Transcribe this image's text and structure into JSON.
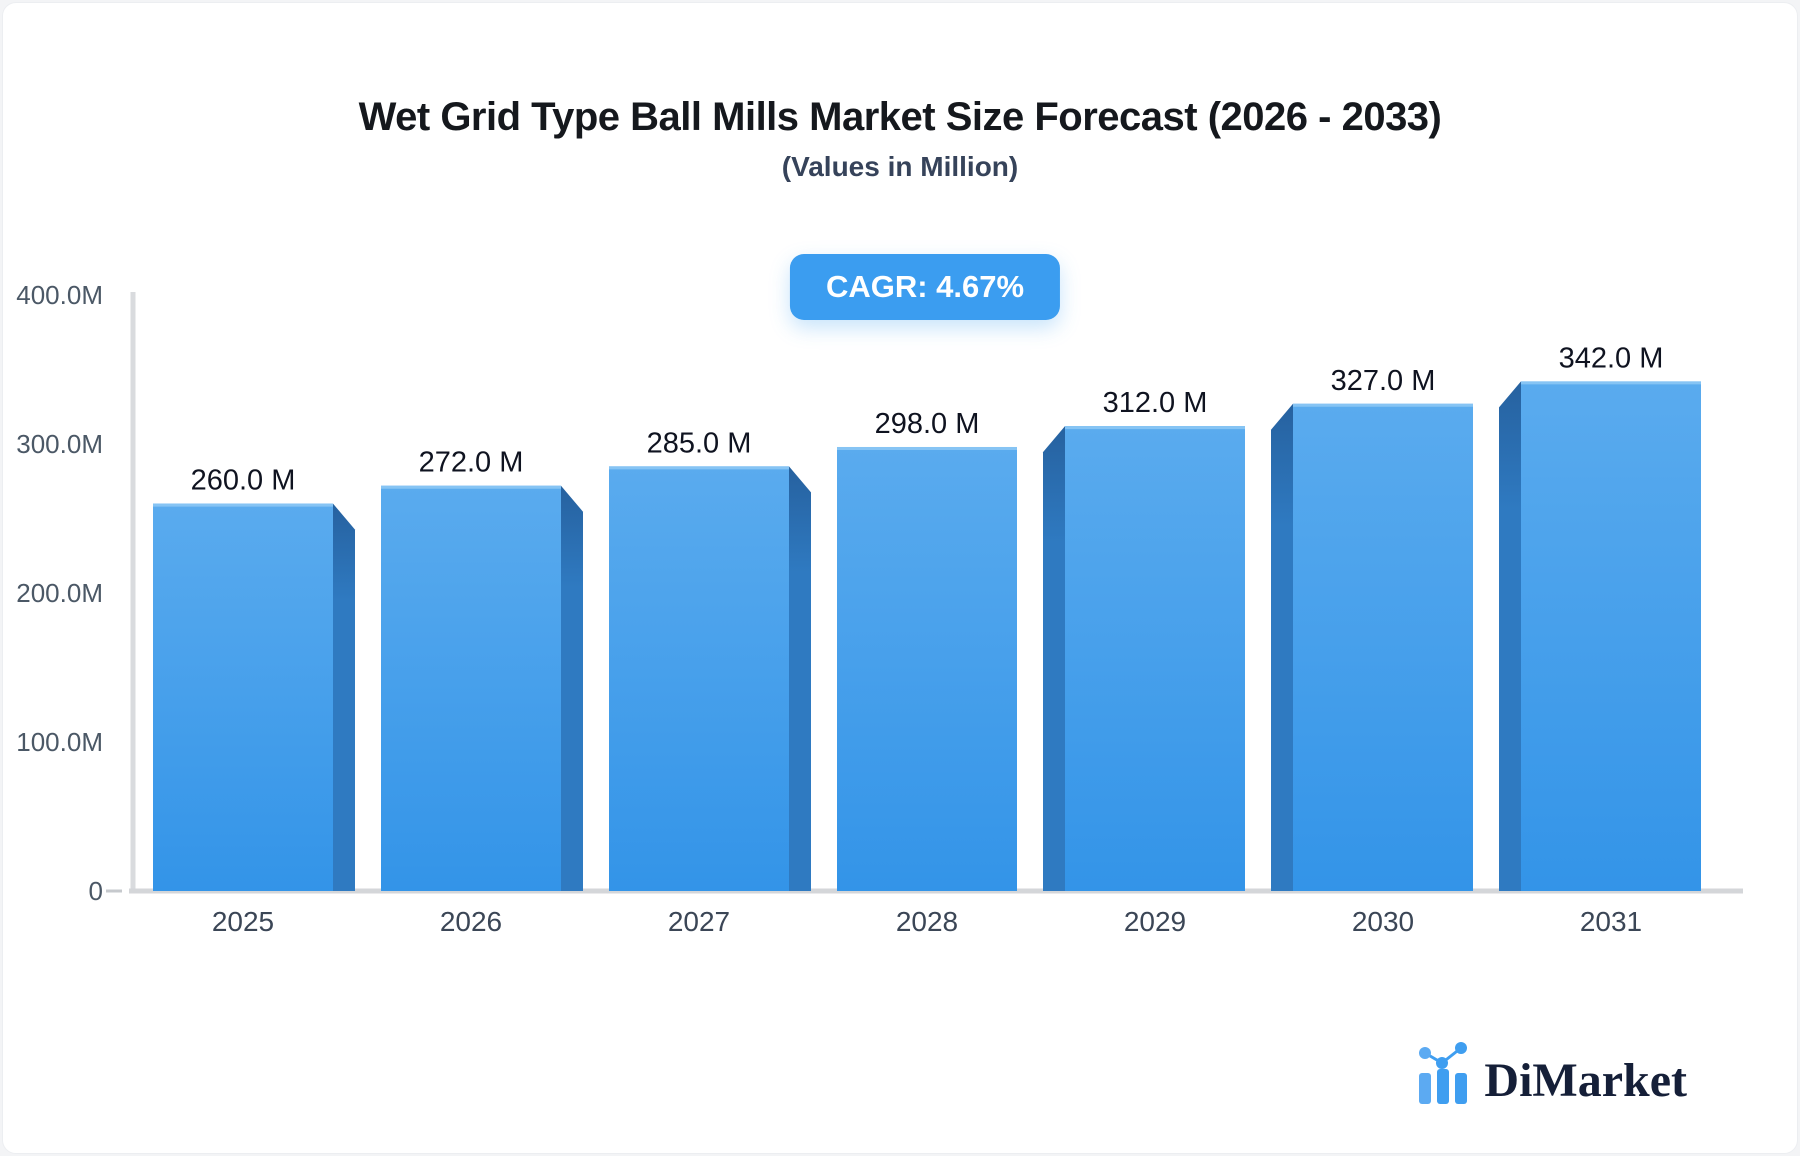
{
  "header": {
    "title": "Wet Grid Type Ball Mills Market Size Forecast (2026 - 2033)",
    "subtitle": "(Values in Million)",
    "cagr_label": "CAGR: 4.67%"
  },
  "chart_data": {
    "type": "bar",
    "title": "Wet Grid Type Ball Mills Market Size Forecast (2026 - 2033)",
    "subtitle": "(Values in Million)",
    "categories": [
      "2025",
      "2026",
      "2027",
      "2028",
      "2029",
      "2030",
      "2031"
    ],
    "values": [
      260.0,
      272.0,
      285.0,
      298.0,
      312.0,
      327.0,
      342.0
    ],
    "value_labels": [
      "260.0 M",
      "272.0 M",
      "285.0 M",
      "298.0 M",
      "312.0 M",
      "327.0 M",
      "342.0 M"
    ],
    "unit": "Million",
    "cagr_percent": "4.67%",
    "xlabel": "",
    "ylabel": "",
    "ylim": [
      0,
      400
    ],
    "y_ticks": [
      {
        "label": "400.0M",
        "value": 400
      },
      {
        "label": "300.0M",
        "value": 300
      },
      {
        "label": "200.0M",
        "value": 200
      },
      {
        "label": "100.0M",
        "value": 100
      },
      {
        "label": "0",
        "value": 0
      }
    ],
    "grid": false,
    "legend_position": "none",
    "bar_style": "3d-bevel",
    "colors": {
      "bar_face_top": "#5aabee",
      "bar_face_bottom": "#3394e8",
      "bar_top_highlight": "#86c4f4",
      "bar_side_top": "#26619f",
      "bar_side_bottom": "#2f7ac1",
      "axis_line": "#d9dbde",
      "baseline": "#d4d6d9",
      "tick_dash": "#c6c9cd",
      "y_label": "#4b5866",
      "x_label": "#3b4656",
      "value_label": "#0f1320",
      "accent": "#3b9df0"
    }
  },
  "branding": {
    "logo_text": "DiMarket",
    "logo_icon": "mini-bar-line-chart-icon",
    "logo_text_color": "#151f38",
    "logo_blue_light": "#5caaf2",
    "logo_blue": "#3f9ef0"
  }
}
